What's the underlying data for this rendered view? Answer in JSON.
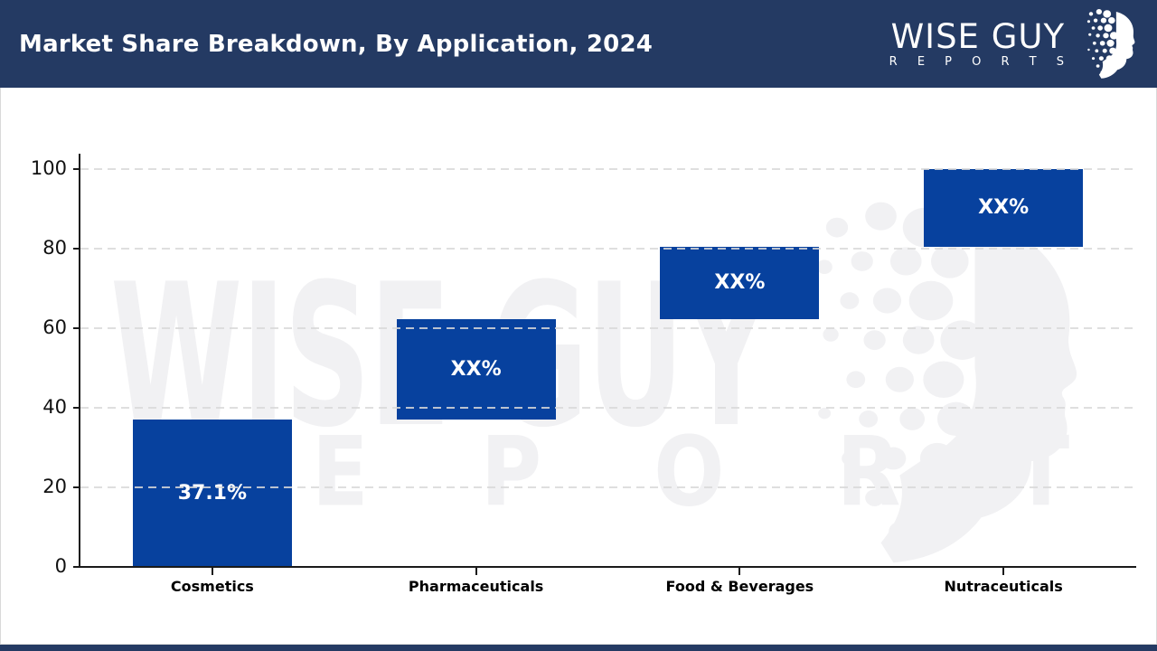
{
  "header": {
    "title": "Market Share Breakdown, By Application, 2024",
    "logo": {
      "line1": "WISE GUY",
      "line2": "R E P O R T S"
    }
  },
  "watermark": {
    "line1": "WISE GUY",
    "line2": "R E P O R T S"
  },
  "chart_data": {
    "type": "bar",
    "variant": "stepped-waterfall",
    "title": "Market Share Breakdown, By Application, 2024",
    "categories": [
      "Cosmetics",
      "Pharmaceuticals",
      "Food & Beverages",
      "Nutraceuticals"
    ],
    "bars": [
      {
        "category": "Cosmetics",
        "start": 0,
        "end": 37.1,
        "label": "37.1%"
      },
      {
        "category": "Pharmaceuticals",
        "start": 37.1,
        "end": 62.3,
        "label": "XX%"
      },
      {
        "category": "Food & Beverages",
        "start": 62.3,
        "end": 80.5,
        "label": "XX%"
      },
      {
        "category": "Nutraceuticals",
        "start": 80.5,
        "end": 100,
        "label": "XX%"
      }
    ],
    "yticks": [
      0,
      20,
      40,
      60,
      80,
      100
    ],
    "ylim": [
      0,
      105
    ],
    "xlabel": "",
    "ylabel": "",
    "legend": null,
    "grid": "horizontal-dashed",
    "colors": {
      "bar": "#07419e",
      "bar_label": "#ffffff",
      "header_bg": "#243a63",
      "grid": "#d9d9d9",
      "axis": "#1a1a1a",
      "watermark": "#f1f1f3"
    }
  }
}
